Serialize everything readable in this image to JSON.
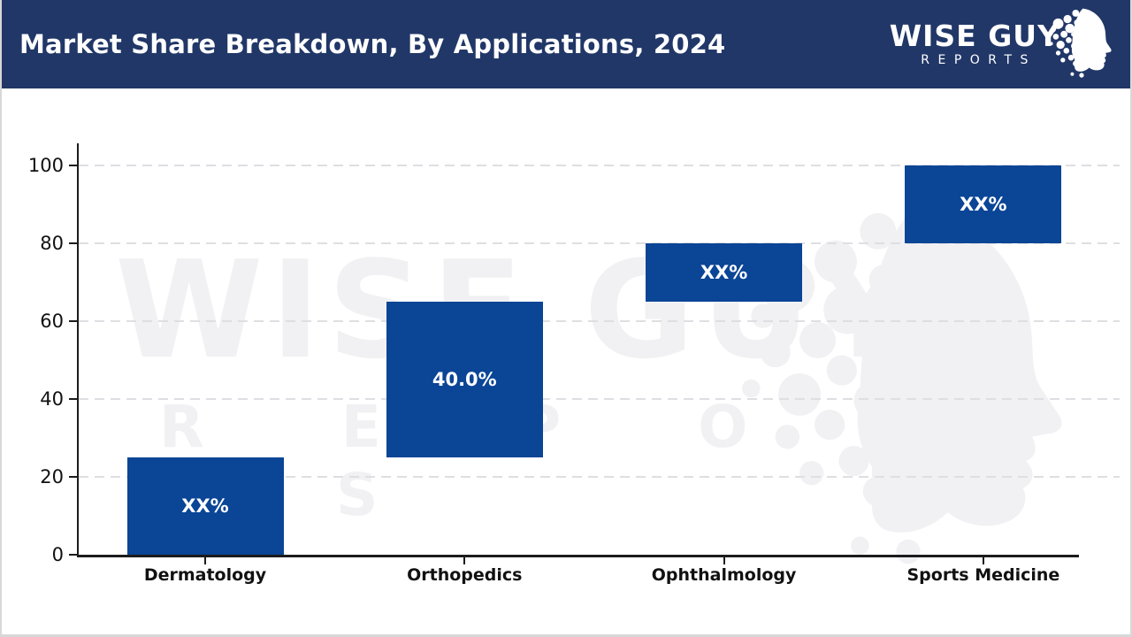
{
  "header": {
    "title": "Market Share Breakdown, By Applications, 2024",
    "logo_line1": "WISE GUY",
    "logo_line2": "REPORTS",
    "bg_color": "#213768"
  },
  "watermark": {
    "line1": "WISE GUY",
    "line2": "R E P O R T S"
  },
  "chart_data": {
    "type": "bar",
    "subtype": "floating-waterfall",
    "title": "Market Share Breakdown, By Applications, 2024",
    "categories": [
      "Dermatology",
      "Orthopedics",
      "Ophthalmology",
      "Sports Medicine"
    ],
    "segments": [
      {
        "category": "Dermatology",
        "start": 0,
        "end": 25,
        "value": 25,
        "label": "XX%"
      },
      {
        "category": "Orthopedics",
        "start": 25,
        "end": 65,
        "value": 40,
        "label": "40.0%"
      },
      {
        "category": "Ophthalmology",
        "start": 65,
        "end": 80,
        "value": 15,
        "label": "XX%"
      },
      {
        "category": "Sports Medicine",
        "start": 80,
        "end": 100,
        "value": 20,
        "label": "XX%"
      }
    ],
    "yticks": [
      0,
      20,
      40,
      60,
      80,
      100
    ],
    "ylim": [
      0,
      105
    ],
    "xlabel": "",
    "ylabel": "",
    "grid": "horizontal-dashed",
    "legend": "none",
    "bar_color": "#0a4596",
    "bar_label_color": "#ffffff",
    "axis_color": "#1c1c1c",
    "grid_color": "#dfdfe3"
  }
}
